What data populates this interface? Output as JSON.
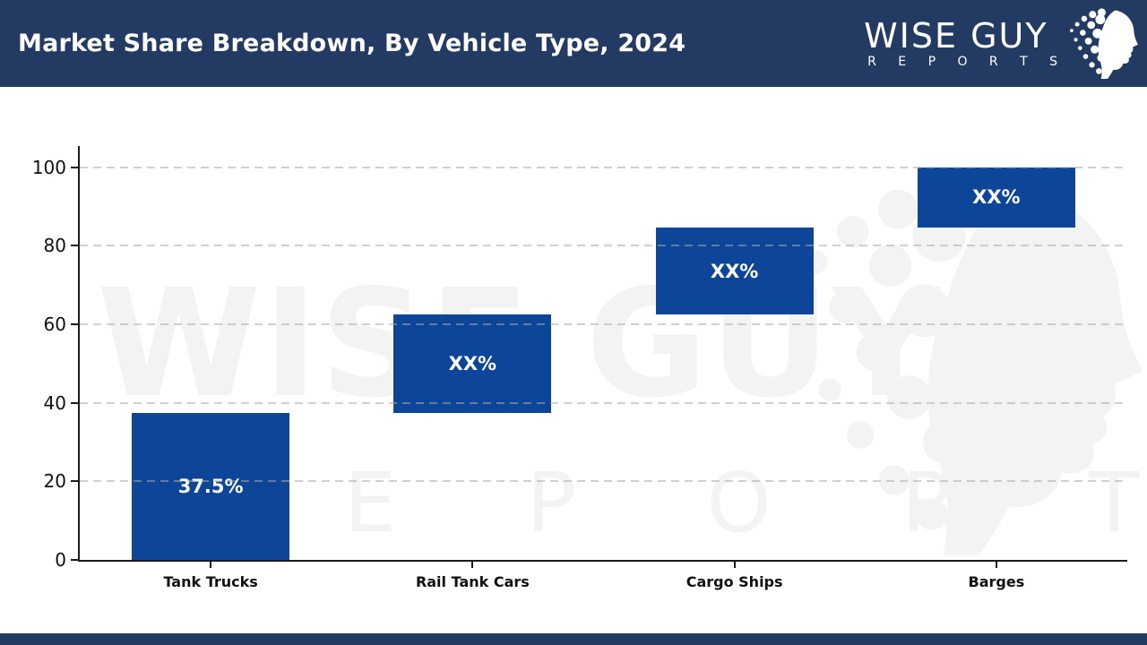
{
  "header": {
    "title": "Market Share Breakdown, By Vehicle Type, 2024",
    "logo": {
      "line1": "WISE GUY",
      "line2": "R E P O R T S"
    }
  },
  "watermark": {
    "line1": "WISE GUY",
    "line2": "R E P O R T S"
  },
  "chart_data": {
    "type": "bar",
    "subtype": "waterfall",
    "title": "Market Share Breakdown, By Vehicle Type, 2024",
    "categories": [
      "Tank Trucks",
      "Rail Tank Cars",
      "Cargo Ships",
      "Barges"
    ],
    "bars": [
      {
        "category": "Tank Trucks",
        "start": 0,
        "end": 37.5,
        "label": "37.5%"
      },
      {
        "category": "Rail Tank Cars",
        "start": 37.5,
        "end": 62.5,
        "label": "XX%"
      },
      {
        "category": "Cargo Ships",
        "start": 62.5,
        "end": 84.5,
        "label": "XX%"
      },
      {
        "category": "Barges",
        "start": 84.5,
        "end": 100,
        "label": "XX%"
      }
    ],
    "xlabel": "",
    "ylabel": "",
    "ylim": [
      0,
      105
    ],
    "yticks": [
      0,
      20,
      40,
      60,
      80,
      100
    ],
    "grid": "dashed horizontal, drawn over bars",
    "legend": "none",
    "bar_color": "#0d4699",
    "bar_label_color": "#ffffff",
    "axis_color": "#1a1a1a"
  },
  "colors": {
    "header_bg": "#233a63",
    "footer_bg": "#233a63",
    "bar": "#0d4699",
    "grid": "#d8d8d8",
    "watermark": "#f3f3f3"
  }
}
